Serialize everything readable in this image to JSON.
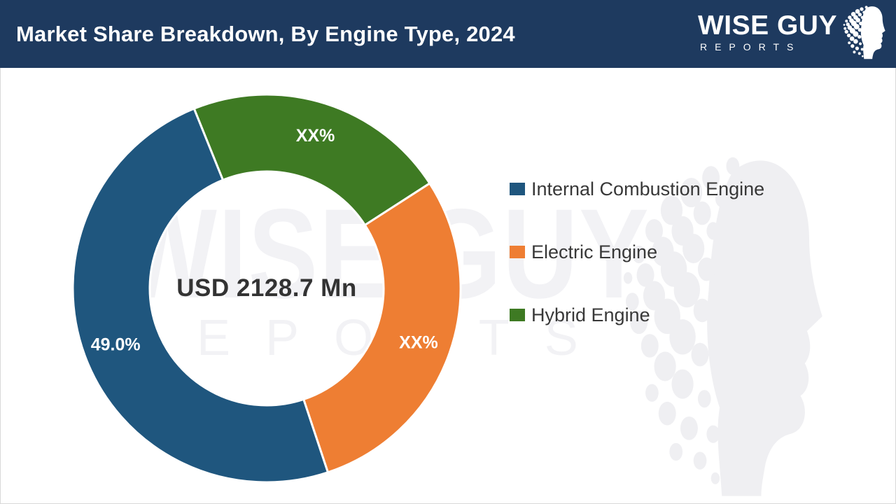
{
  "header": {
    "title": "Market Share Breakdown, By Engine Type, 2024",
    "logo": {
      "name": "WISE GUY",
      "sub": "REPORTS"
    }
  },
  "watermark": {
    "line1": "WISE GUY",
    "line2": "REPORTS"
  },
  "chart_data": {
    "type": "pie",
    "subtype": "donut",
    "title": "Market Share Breakdown, By Engine Type, 2024",
    "center_label": "USD 2128.7 Mn",
    "start_angle_clockwise_from_top_deg": 338,
    "direction": "clockwise",
    "segments": [
      {
        "label": "Hybrid Engine",
        "value_label": "XX%",
        "percent": 22,
        "color": "#3E7A23"
      },
      {
        "label": "Electric Engine",
        "value_label": "XX%",
        "percent": 29,
        "color": "#EE7E33"
      },
      {
        "label": "Internal Combustion Engine",
        "value_label": "49.0%",
        "percent": 49,
        "color": "#1F567E"
      }
    ],
    "legend": {
      "position": "right",
      "items": [
        {
          "label": "Internal Combustion Engine",
          "color": "#1F567E"
        },
        {
          "label": "Electric Engine",
          "color": "#EE7E33"
        },
        {
          "label": "Hybrid Engine",
          "color": "#3E7A23"
        }
      ]
    }
  },
  "colors": {
    "header_bg": "#1E3A5F",
    "text": "#333333",
    "watermark": "#F2F2F5",
    "slice_gap": "#FFFFFF"
  }
}
